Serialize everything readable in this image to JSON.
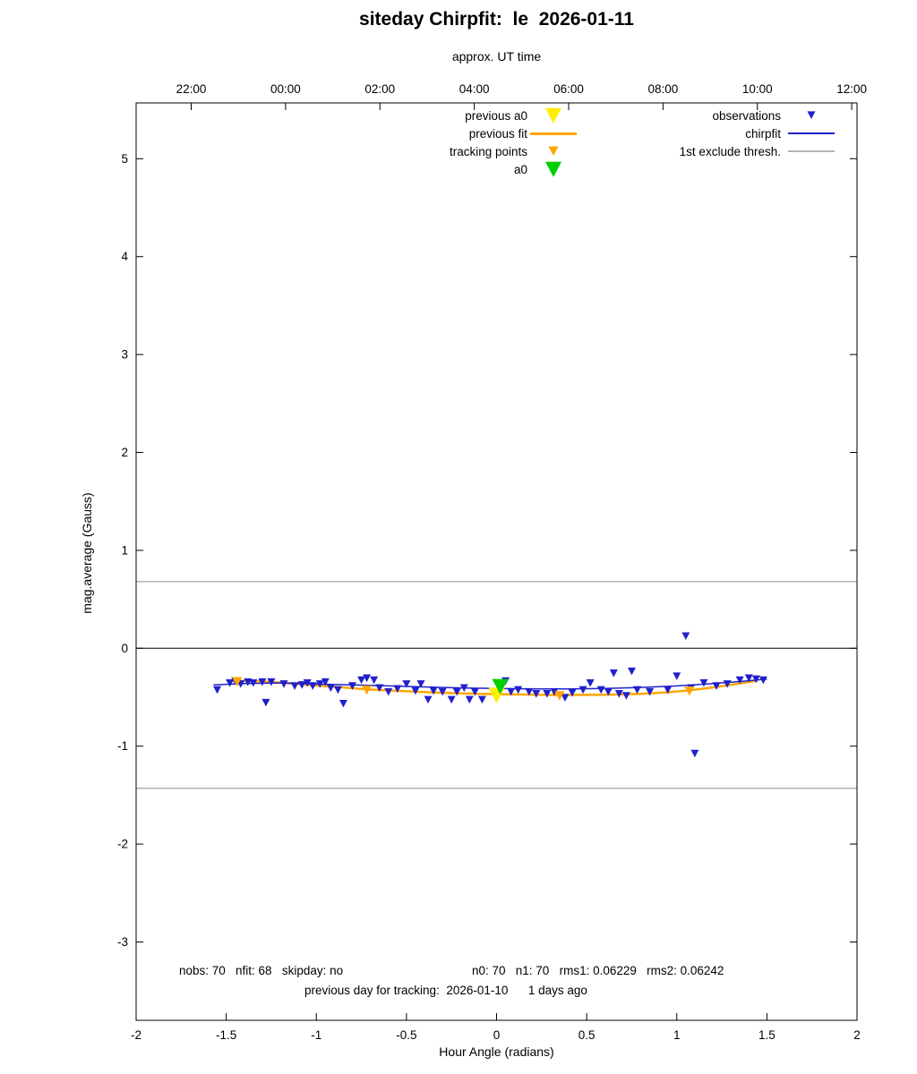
{
  "title": "siteday Chirpfit:  le  2026-01-11",
  "top_axis_label": "approx. UT time",
  "x_axis_label": "Hour Angle (radians)",
  "y_axis_label": "mag.average (Gauss)",
  "stats": {
    "line1_left": "nobs: 70   nfit: 68   skipday: no",
    "line1_right": "n0: 70   n1: 70   rms1: 0.06229   rms2: 0.06242",
    "line2": "previous day for tracking:  2026-01-10      1 days ago"
  },
  "legend": {
    "left": [
      {
        "label": "previous a0",
        "marker": "triangle",
        "color": "#ffee00",
        "size": 9
      },
      {
        "label": "previous fit",
        "marker": "line",
        "color": "#ffa500",
        "thickness": 3
      },
      {
        "label": "tracking points",
        "marker": "triangle",
        "color": "#ffa500",
        "size": 5.5
      },
      {
        "label": "a0",
        "marker": "triangle",
        "color": "#00d000",
        "size": 9
      }
    ],
    "right": [
      {
        "label": "observations",
        "marker": "triangle",
        "color": "#2020cc",
        "size": 4.5
      },
      {
        "label": "chirpfit",
        "marker": "line",
        "color": "#2020cc",
        "thickness": 2
      },
      {
        "label": "1st exclude thresh.",
        "marker": "line",
        "color": "#b3b3b3",
        "thickness": 2
      }
    ]
  },
  "chart_data": {
    "type": "scatter",
    "title": "siteday Chirpfit:  le  2026-01-11",
    "xlabel": "Hour Angle (radians)",
    "x2label": "approx. UT time",
    "ylabel": "mag.average (Gauss)",
    "xlim": [
      -2,
      2
    ],
    "ylim": [
      -3.8,
      5.57
    ],
    "grid": false,
    "zero_line": 0,
    "exclude_thresholds": [
      0.68,
      -1.43
    ],
    "colors": {
      "threshold": "#b3b3b3",
      "zero_line": "#000000",
      "frame": "#000000"
    },
    "x_ticks": [
      {
        "v": -2,
        "label": "-2"
      },
      {
        "v": -1.5,
        "label": "-1.5"
      },
      {
        "v": -1,
        "label": "-1"
      },
      {
        "v": -0.5,
        "label": "-0.5"
      },
      {
        "v": 0,
        "label": "0"
      },
      {
        "v": 0.5,
        "label": "0.5"
      },
      {
        "v": 1,
        "label": "1"
      },
      {
        "v": 1.5,
        "label": "1.5"
      },
      {
        "v": 2,
        "label": "2"
      }
    ],
    "y_ticks": [
      {
        "v": -3,
        "label": "-3"
      },
      {
        "v": -2,
        "label": "-2"
      },
      {
        "v": -1,
        "label": "-1"
      },
      {
        "v": 0,
        "label": "0"
      },
      {
        "v": 1,
        "label": "1"
      },
      {
        "v": 2,
        "label": "2"
      },
      {
        "v": 3,
        "label": "3"
      },
      {
        "v": 4,
        "label": "4"
      },
      {
        "v": 5,
        "label": "5"
      }
    ],
    "ut_ticks": [
      {
        "v": -1.6944,
        "label": "22:00"
      },
      {
        "v": -1.1708,
        "label": "00:00"
      },
      {
        "v": -0.6472,
        "label": "02:00"
      },
      {
        "v": -0.1236,
        "label": "04:00"
      },
      {
        "v": 0.4,
        "label": "06:00"
      },
      {
        "v": 0.9236,
        "label": "08:00"
      },
      {
        "v": 1.4472,
        "label": "10:00"
      },
      {
        "v": 1.9708,
        "label": "12:00"
      }
    ],
    "series": [
      {
        "name": "previous fit",
        "type": "line",
        "color": "#ffa500",
        "width": 2.5,
        "points": [
          [
            -1.5,
            -0.33
          ],
          [
            -1.35,
            -0.335
          ],
          [
            -1.2,
            -0.35
          ],
          [
            -1.0,
            -0.38
          ],
          [
            -0.85,
            -0.4
          ],
          [
            -0.72,
            -0.42
          ],
          [
            -0.5,
            -0.44
          ],
          [
            -0.3,
            -0.455
          ],
          [
            -0.1,
            -0.465
          ],
          [
            0.1,
            -0.472
          ],
          [
            0.35,
            -0.478
          ],
          [
            0.6,
            -0.475
          ],
          [
            0.8,
            -0.465
          ],
          [
            0.95,
            -0.45
          ],
          [
            1.07,
            -0.43
          ],
          [
            1.2,
            -0.4
          ],
          [
            1.35,
            -0.36
          ],
          [
            1.45,
            -0.33
          ]
        ]
      },
      {
        "name": "chirpfit",
        "type": "line",
        "color": "#2020cc",
        "width": 1.5,
        "points": [
          [
            -1.57,
            -0.375
          ],
          [
            -1.4,
            -0.36
          ],
          [
            -1.2,
            -0.355
          ],
          [
            -1.0,
            -0.365
          ],
          [
            -0.8,
            -0.375
          ],
          [
            -0.6,
            -0.385
          ],
          [
            -0.4,
            -0.395
          ],
          [
            -0.2,
            -0.405
          ],
          [
            0.0,
            -0.41
          ],
          [
            0.2,
            -0.415
          ],
          [
            0.4,
            -0.415
          ],
          [
            0.6,
            -0.41
          ],
          [
            0.8,
            -0.4
          ],
          [
            1.0,
            -0.385
          ],
          [
            1.2,
            -0.36
          ],
          [
            1.35,
            -0.34
          ],
          [
            1.5,
            -0.315
          ]
        ]
      },
      {
        "name": "observations",
        "type": "points",
        "marker": "triangle-down",
        "color": "#2020cc",
        "size": 4.5,
        "points": [
          [
            -1.55,
            -0.42
          ],
          [
            -1.48,
            -0.35
          ],
          [
            -1.45,
            -0.33
          ],
          [
            -1.42,
            -0.36
          ],
          [
            -1.38,
            -0.34
          ],
          [
            -1.35,
            -0.35
          ],
          [
            -1.3,
            -0.34
          ],
          [
            -1.28,
            -0.55
          ],
          [
            -1.25,
            -0.34
          ],
          [
            -1.18,
            -0.36
          ],
          [
            -1.12,
            -0.38
          ],
          [
            -1.08,
            -0.37
          ],
          [
            -1.05,
            -0.35
          ],
          [
            -1.02,
            -0.38
          ],
          [
            -0.98,
            -0.36
          ],
          [
            -0.95,
            -0.34
          ],
          [
            -0.92,
            -0.4
          ],
          [
            -0.88,
            -0.42
          ],
          [
            -0.85,
            -0.56
          ],
          [
            -0.8,
            -0.38
          ],
          [
            -0.75,
            -0.32
          ],
          [
            -0.72,
            -0.3
          ],
          [
            -0.68,
            -0.32
          ],
          [
            -0.65,
            -0.4
          ],
          [
            -0.6,
            -0.44
          ],
          [
            -0.55,
            -0.41
          ],
          [
            -0.5,
            -0.36
          ],
          [
            -0.45,
            -0.43
          ],
          [
            -0.42,
            -0.36
          ],
          [
            -0.38,
            -0.52
          ],
          [
            -0.35,
            -0.43
          ],
          [
            -0.3,
            -0.44
          ],
          [
            -0.25,
            -0.52
          ],
          [
            -0.22,
            -0.44
          ],
          [
            -0.18,
            -0.4
          ],
          [
            -0.15,
            -0.52
          ],
          [
            -0.12,
            -0.44
          ],
          [
            -0.08,
            -0.52
          ],
          [
            0.02,
            -0.44
          ],
          [
            0.05,
            -0.33
          ],
          [
            0.08,
            -0.44
          ],
          [
            0.12,
            -0.42
          ],
          [
            0.18,
            -0.44
          ],
          [
            0.22,
            -0.46
          ],
          [
            0.28,
            -0.46
          ],
          [
            0.32,
            -0.44
          ],
          [
            0.38,
            -0.5
          ],
          [
            0.42,
            -0.45
          ],
          [
            0.48,
            -0.42
          ],
          [
            0.52,
            -0.35
          ],
          [
            0.58,
            -0.42
          ],
          [
            0.62,
            -0.44
          ],
          [
            0.65,
            -0.25
          ],
          [
            0.68,
            -0.46
          ],
          [
            0.72,
            -0.48
          ],
          [
            0.75,
            -0.23
          ],
          [
            0.78,
            -0.42
          ],
          [
            0.85,
            -0.44
          ],
          [
            0.95,
            -0.42
          ],
          [
            1.0,
            -0.28
          ],
          [
            1.05,
            0.13
          ],
          [
            1.08,
            -0.4
          ],
          [
            1.1,
            -1.07
          ],
          [
            1.15,
            -0.35
          ],
          [
            1.22,
            -0.38
          ],
          [
            1.28,
            -0.36
          ],
          [
            1.35,
            -0.32
          ],
          [
            1.4,
            -0.3
          ],
          [
            1.44,
            -0.31
          ],
          [
            1.48,
            -0.32
          ]
        ]
      },
      {
        "name": "tracking points",
        "type": "points",
        "marker": "triangle-down",
        "color": "#ffa500",
        "size": 5.5,
        "points": [
          [
            -1.44,
            -0.335
          ],
          [
            -0.72,
            -0.42
          ],
          [
            0.35,
            -0.478
          ],
          [
            1.07,
            -0.43
          ]
        ]
      },
      {
        "name": "previous a0",
        "type": "points",
        "marker": "triangle-down",
        "color": "#ffee00",
        "size": 9,
        "points": [
          [
            0.0,
            -0.47
          ]
        ]
      },
      {
        "name": "a0",
        "type": "points",
        "marker": "triangle-down",
        "color": "#00d000",
        "size": 9,
        "points": [
          [
            0.02,
            -0.38
          ]
        ]
      }
    ],
    "stats_text": {
      "nobs": 70,
      "nfit": 68,
      "skipday": "no",
      "n0": 70,
      "n1": 70,
      "rms1": 0.06229,
      "rms2": 0.06242,
      "previous_day_for_tracking": "2026-01-10",
      "days_ago": "1 days ago"
    }
  }
}
